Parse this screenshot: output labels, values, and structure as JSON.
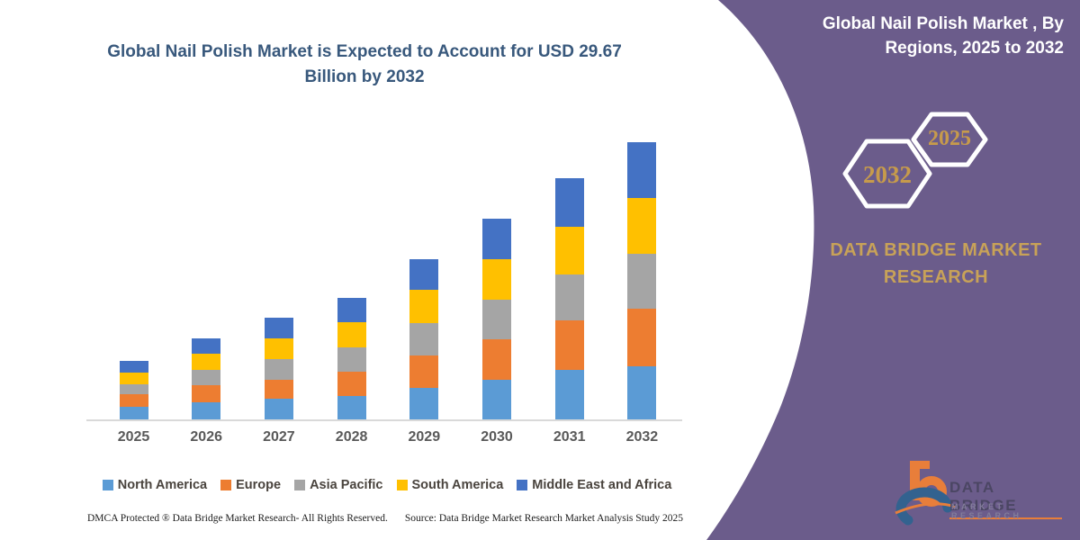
{
  "colors": {
    "purple_panel": "#6b5c8b",
    "gold": "#C79B4B",
    "brand_gold": "#C8A258",
    "title_blue": "#38587C",
    "axis_gray": "#d9d9d9",
    "year_label_gray": "#595959"
  },
  "chart": {
    "title_line1": "Global Nail Polish Market is Expected to Account for USD 29.67",
    "title_line2": "Billion by 2032"
  },
  "chart_data": {
    "type": "bar",
    "stacked": true,
    "title": "Global Nail Polish Market is Expected to Account for USD 29.67 Billion by 2032",
    "unit": "USD Billion",
    "xlabel": "",
    "ylabel": "",
    "grid": false,
    "legend_position": "bottom",
    "categories": [
      "2025",
      "2026",
      "2027",
      "2028",
      "2029",
      "2030",
      "2031",
      "2032"
    ],
    "series": [
      {
        "name": "North America",
        "color": "#5B9BD5",
        "values": [
          1.35,
          1.8,
          2.18,
          2.47,
          3.36,
          4.23,
          5.29,
          5.71
        ]
      },
      {
        "name": "Europe",
        "color": "#ED7D31",
        "values": [
          1.37,
          1.83,
          2.02,
          2.57,
          3.43,
          4.32,
          5.29,
          6.15
        ]
      },
      {
        "name": "Asia Pacific",
        "color": "#A5A5A5",
        "values": [
          1.06,
          1.6,
          2.21,
          2.56,
          3.46,
          4.23,
          4.87,
          5.86
        ]
      },
      {
        "name": "South America",
        "color": "#FFC000",
        "values": [
          1.29,
          1.77,
          2.17,
          2.66,
          3.58,
          4.32,
          5.12,
          5.99
        ]
      },
      {
        "name": "Middle East and Africa",
        "color": "#4472C4",
        "values": [
          1.28,
          1.6,
          2.18,
          2.62,
          3.31,
          4.36,
          5.23,
          5.96
        ]
      }
    ],
    "totals": [
      6.35,
      8.6,
      10.76,
      12.88,
      17.14,
      21.46,
      25.8,
      29.67
    ],
    "annotation": "USD 29.67 Billion by 2032"
  },
  "side_panel": {
    "title_line1": "Global Nail Polish Market , By",
    "title_line2": "Regions, 2025 to 2032",
    "hexagon_back_label": "2032",
    "hexagon_front_label": "2025",
    "brand_line1": "DATA BRIDGE MARKET",
    "brand_line2": "RESEARCH"
  },
  "logo": {
    "text1": "DATA BRIDGE",
    "text2": "MARKET RESEARCH"
  },
  "footer": {
    "left": "DMCA Protected ® Data Bridge Market Research-  All Rights Reserved.",
    "source": "Source: Data Bridge Market Research  Market Analysis Study 2025"
  }
}
